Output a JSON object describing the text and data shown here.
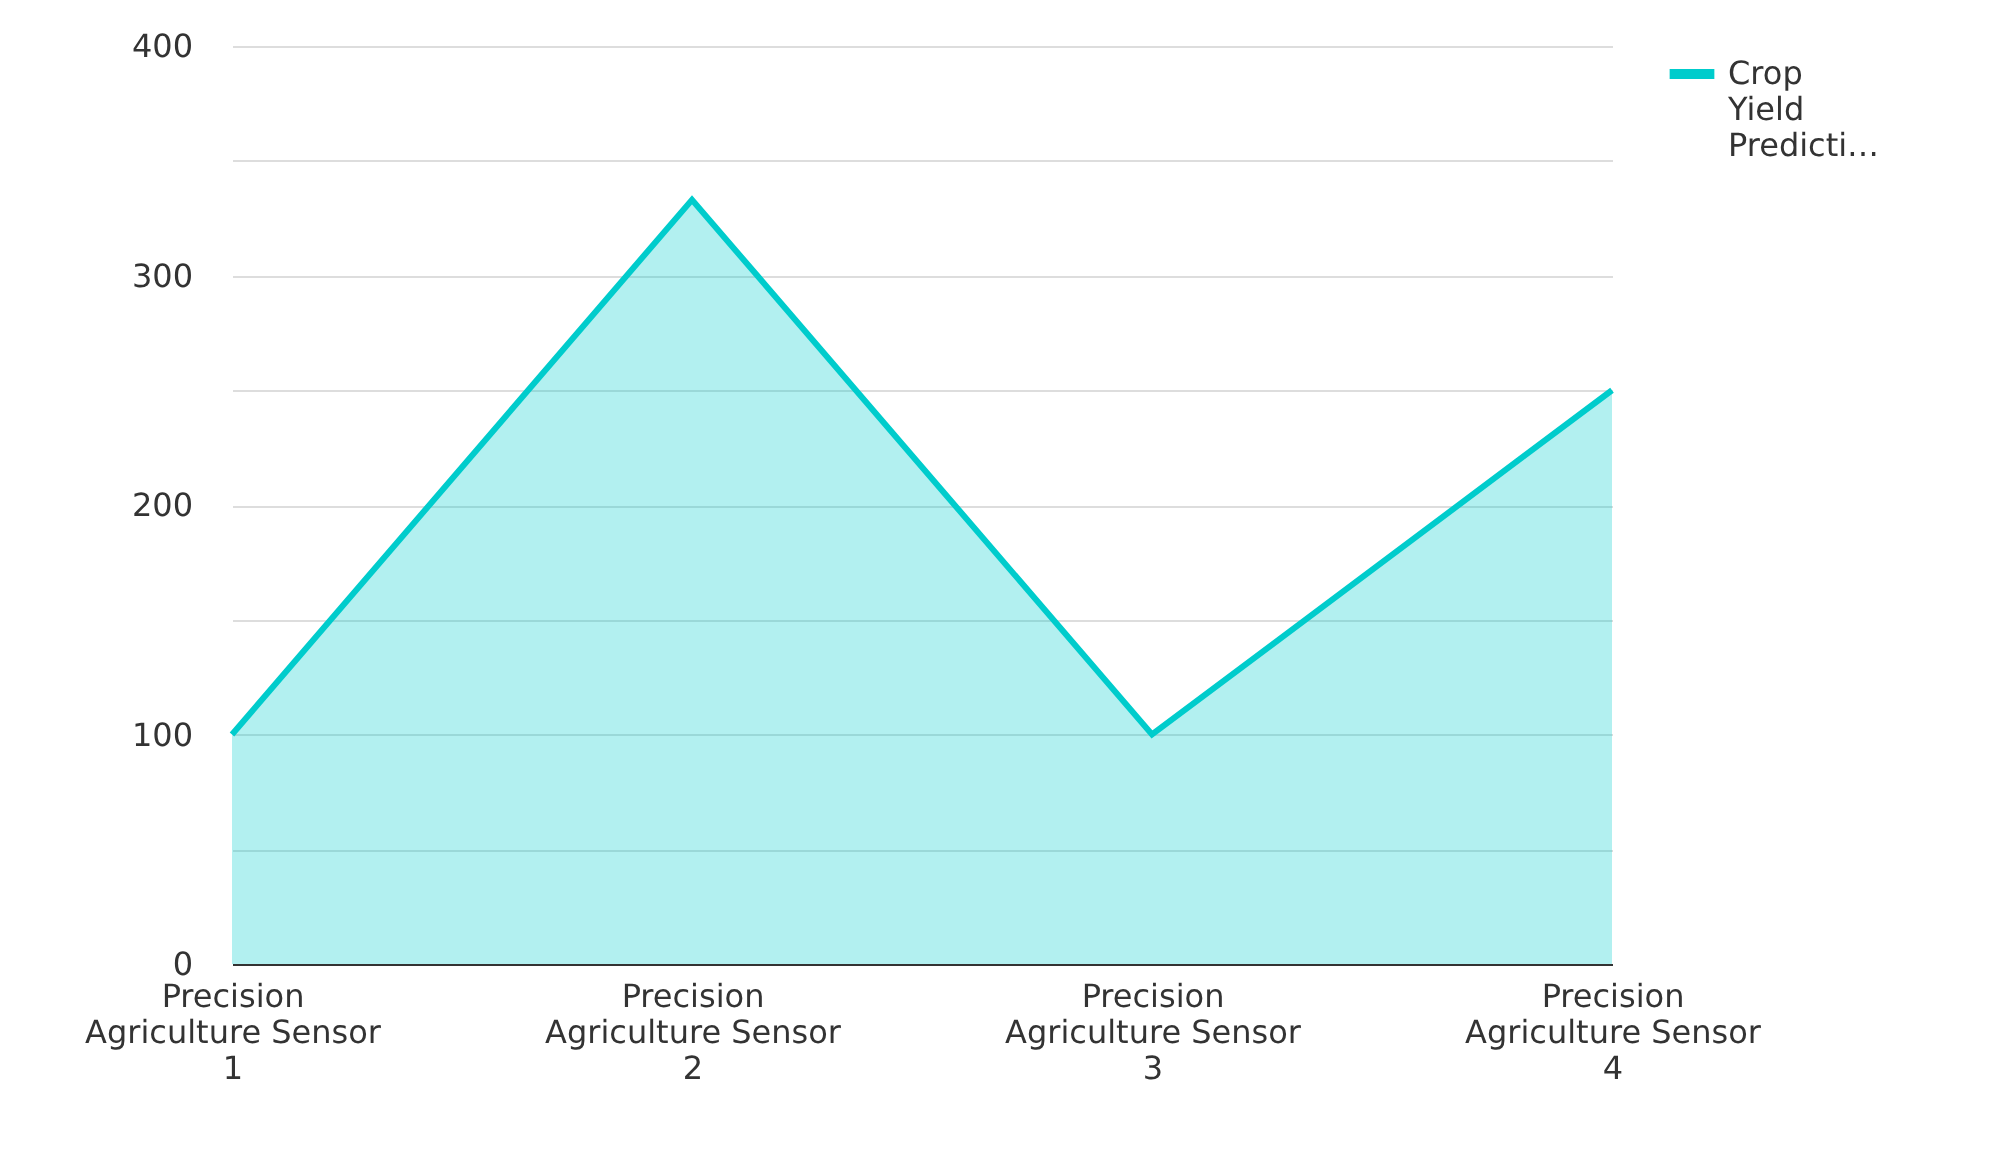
{
  "chart_data": {
    "type": "area",
    "categories": [
      "Precision Agriculture Sensor 1",
      "Precision Agriculture Sensor 2",
      "Precision Agriculture Sensor 3",
      "Precision Agriculture Sensor 4"
    ],
    "series": [
      {
        "name": "Crop Yield Predicti…",
        "color": "#00cccc",
        "values": [
          100,
          333,
          100,
          250
        ]
      }
    ],
    "ylim": [
      0,
      400
    ],
    "yticks": [
      0,
      {
        "value": 50,
        "label": null
      },
      100,
      {
        "value": 150,
        "label": null
      },
      200,
      {
        "value": 250,
        "label": null
      },
      300,
      {
        "value": 350,
        "label": null
      },
      400
    ],
    "grid": "y",
    "legend": "top right"
  }
}
